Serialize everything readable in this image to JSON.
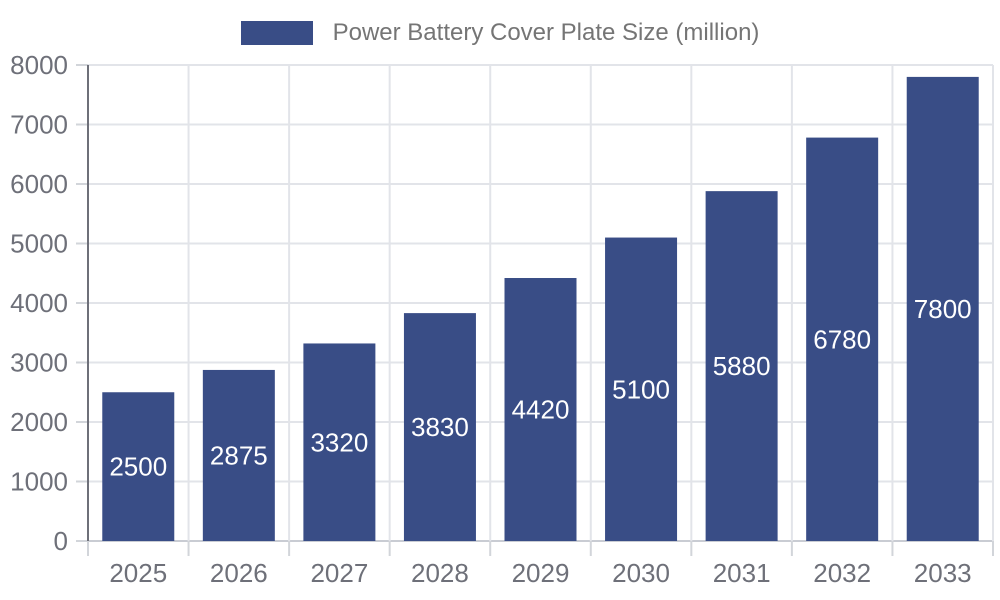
{
  "legend": {
    "series_label": "Power Battery Cover Plate Size (million)"
  },
  "chart_data": {
    "type": "bar",
    "title": "Power Battery Cover Plate Size (million)",
    "categories": [
      "2025",
      "2026",
      "2027",
      "2028",
      "2029",
      "2030",
      "2031",
      "2032",
      "2033"
    ],
    "values": [
      2500,
      2875,
      3320,
      3830,
      4420,
      5100,
      5880,
      6780,
      7800
    ],
    "xlabel": "",
    "ylabel": "",
    "ylim": [
      0,
      8000
    ],
    "ytick_step": 1000,
    "yticks": [
      0,
      1000,
      2000,
      3000,
      4000,
      5000,
      6000,
      7000,
      8000
    ],
    "grid": true,
    "legend_position": "top-center",
    "bar_labels_visible": true,
    "bar_label_position": "inside-center",
    "colors": {
      "bar": "#394D86",
      "bar_label": "#FFFFFF",
      "grid": "#E2E4E9",
      "axis_line": "#6E7079",
      "baseline": "#C9CCD3",
      "tick": "#D2D5DA",
      "axis_text": "#6E7079",
      "legend_text": "#757575",
      "background": "#FFFFFF"
    }
  }
}
